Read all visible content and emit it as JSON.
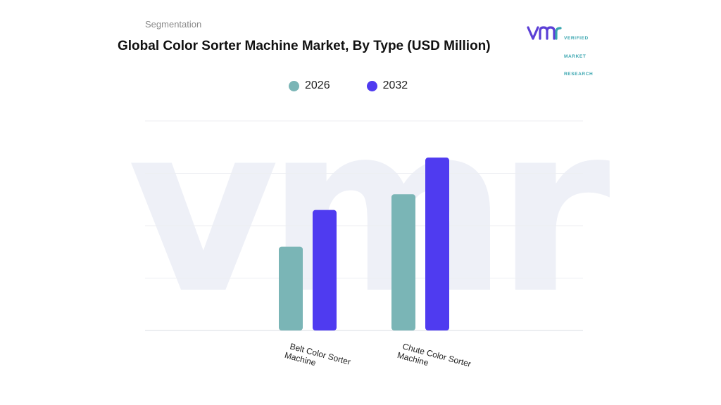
{
  "header": {
    "section_label": "Segmentation",
    "title": "Global Color Sorter Machine Market, By Type (USD Million)"
  },
  "logo": {
    "mark": "vmr",
    "lines": [
      "VERIFIED",
      "MARKET",
      "RESEARCH"
    ],
    "color": "#3aa6b0",
    "mark_color": "#5b3fd6"
  },
  "watermark": "vmr",
  "chart_data": {
    "type": "bar",
    "title": "Global Color Sorter Machine Market, By Type (USD Million)",
    "categories": [
      "Belt Color Sorter Machine",
      "Chute Color Sorter Machine"
    ],
    "series": [
      {
        "name": "2026",
        "color": "#7ab5b6",
        "values": [
          1.6,
          2.6
        ]
      },
      {
        "name": "2032",
        "color": "#4f3bf0",
        "values": [
          2.3,
          3.3
        ]
      }
    ],
    "ylim": [
      0,
      4.5
    ],
    "grid": true,
    "y_tick_labels_shown": false,
    "legend_position": "top-center",
    "xlabel": "",
    "ylabel": ""
  }
}
